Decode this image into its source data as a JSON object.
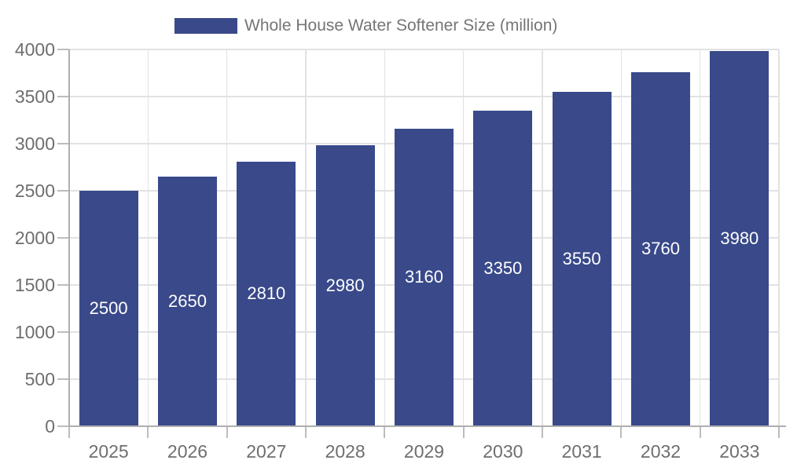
{
  "chart_data": {
    "type": "bar",
    "title": "",
    "categories": [
      "2025",
      "2026",
      "2027",
      "2028",
      "2029",
      "2030",
      "2031",
      "2032",
      "2033"
    ],
    "series": [
      {
        "name": "Whole House Water Softener Size (million)",
        "values": [
          2500,
          2650,
          2810,
          2980,
          3160,
          3350,
          3550,
          3760,
          3980
        ]
      }
    ],
    "xlabel": "",
    "ylabel": "",
    "ylim": [
      0,
      4000
    ],
    "y_ticks": [
      0,
      500,
      1000,
      1500,
      2000,
      2500,
      3000,
      3500,
      4000
    ],
    "grid": true,
    "legend_position": "top",
    "value_labels_position": "inside-center"
  },
  "colors": {
    "background": "#FFFFFF",
    "bar": "#39498A",
    "bar_value_text": "#FFFFFF",
    "gridline": "#E2E2E2",
    "axis_line": "#AFAFAF",
    "tick": "#BDBDBD",
    "axis_text": "#6E6E6E",
    "legend_text": "#757575"
  }
}
